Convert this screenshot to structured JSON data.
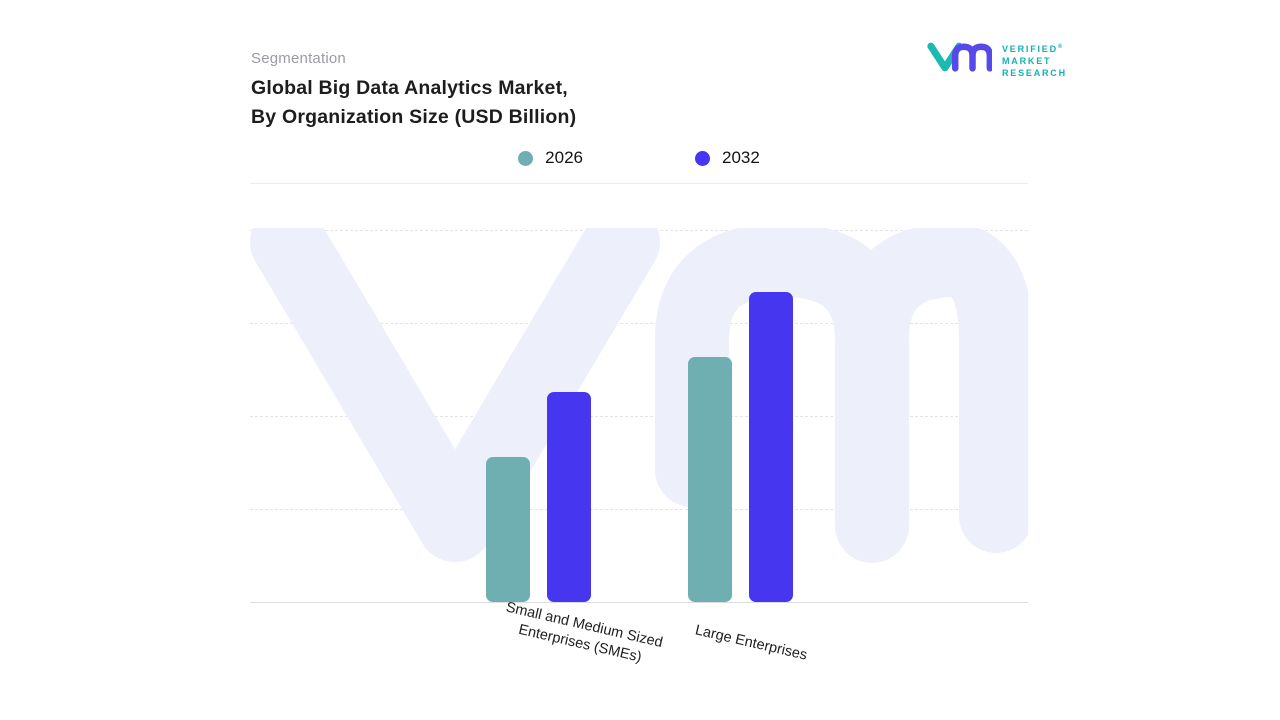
{
  "header": {
    "eyebrow": "Segmentation",
    "title_line1": "Global Big Data Analytics Market,",
    "title_line2": "By Organization Size (USD Billion)"
  },
  "logo": {
    "line1": "VERIFIED",
    "line2": "MARKET",
    "line3": "RESEARCH",
    "registered": "®",
    "teal": "#12b2ad",
    "indigo": "#5748ea"
  },
  "colors": {
    "series_2026": "#6FAFB1",
    "series_2032": "#4636F0",
    "watermark": "#EDF0FA",
    "grid": "#E3E3E8",
    "baseline": "#DCDCE1",
    "eyebrow_gray": "#9B9BA1",
    "title_dark": "#1D1D1F"
  },
  "chart_data": {
    "type": "bar",
    "title": "Global Big Data Analytics Market, By Organization Size (USD Billion)",
    "unit": "USD Billion",
    "categories": [
      "Small and Medium Sized Enterprises (SMEs)",
      "Large Enterprises"
    ],
    "series": [
      {
        "name": "2026",
        "color": "#6FAFB1",
        "values": [
          14.5,
          24.5
        ]
      },
      {
        "name": "2032",
        "color": "#4636F0",
        "values": [
          21.0,
          31.0
        ]
      }
    ],
    "xlabel": "",
    "ylabel": "",
    "ylim": [
      0,
      37.5
    ],
    "axis_tick_labels": false,
    "value_labels": false,
    "grid": "horizontal-dashed",
    "legend_position": "top-center"
  },
  "xaxis": {
    "labels": [
      {
        "lines": [
          "Small and Medium Sized",
          "Enterprises (SMEs)"
        ]
      },
      {
        "lines": [
          "Large Enterprises"
        ]
      }
    ]
  }
}
